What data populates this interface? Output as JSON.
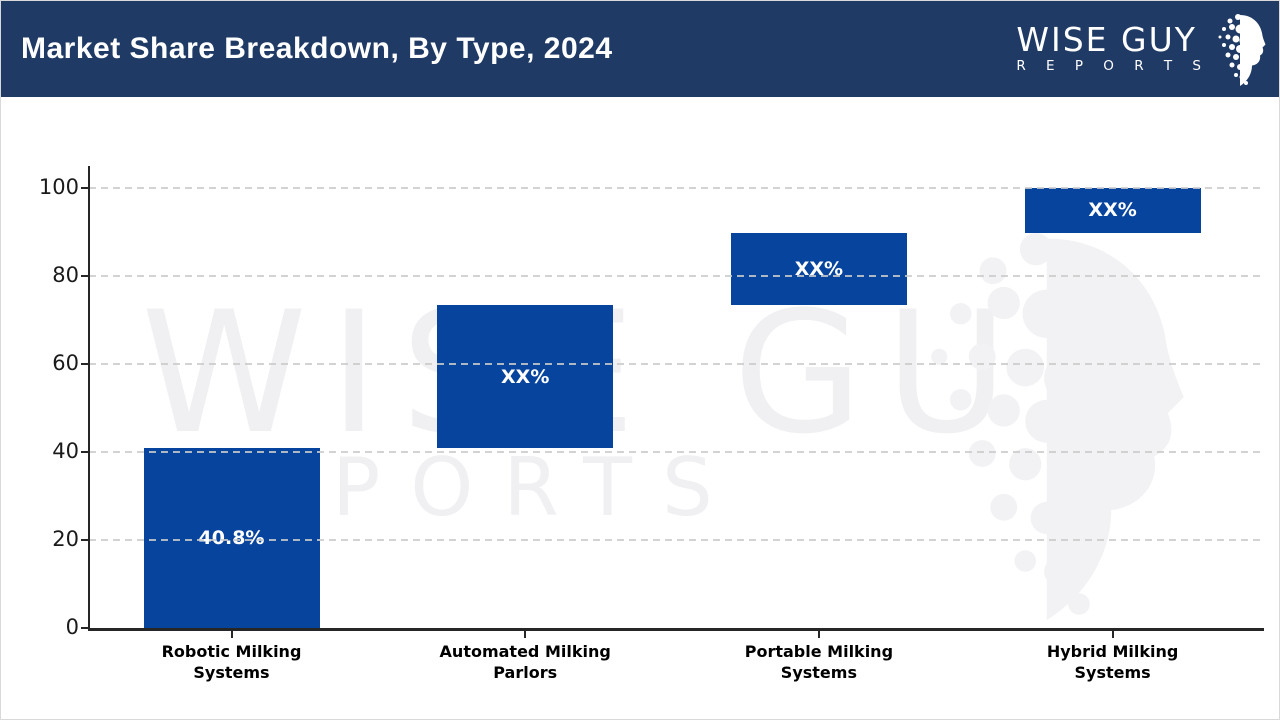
{
  "header": {
    "title": "Market Share Breakdown, By Type, 2024",
    "bg_color": "#203a66",
    "logo": {
      "line1": "WISE GUY",
      "line2": "R E P O R T S"
    }
  },
  "watermark": {
    "line1": "WISE GUY",
    "line2": "REPORTS"
  },
  "chart_data": {
    "type": "bar",
    "subtype": "waterfall",
    "title": "Market Share Breakdown, By Type, 2024",
    "categories": [
      "Robotic Milking Systems",
      "Automated Milking Parlors",
      "Portable Milking Systems",
      "Hybrid Milking Systems"
    ],
    "series": [
      {
        "name": "Market Share %",
        "segments": [
          {
            "start": 0,
            "end": 40.8,
            "value": 40.8,
            "label": "40.8%"
          },
          {
            "start": 40.8,
            "end": 73.4,
            "value": 32.6,
            "label": "XX%"
          },
          {
            "start": 73.4,
            "end": 89.8,
            "value": 16.4,
            "label": "XX%"
          },
          {
            "start": 89.8,
            "end": 100,
            "value": 10.2,
            "label": "XX%"
          }
        ]
      }
    ],
    "xlabel": "",
    "ylabel": "",
    "ylim": [
      0,
      100
    ],
    "yticks": [
      0,
      20,
      40,
      60,
      80,
      100
    ],
    "grid": "horizontal dashed, drawn over bars",
    "legend": "none",
    "bar_color": "#07449e",
    "axis_color": "#262626",
    "grid_color": "#cbcbcb"
  }
}
